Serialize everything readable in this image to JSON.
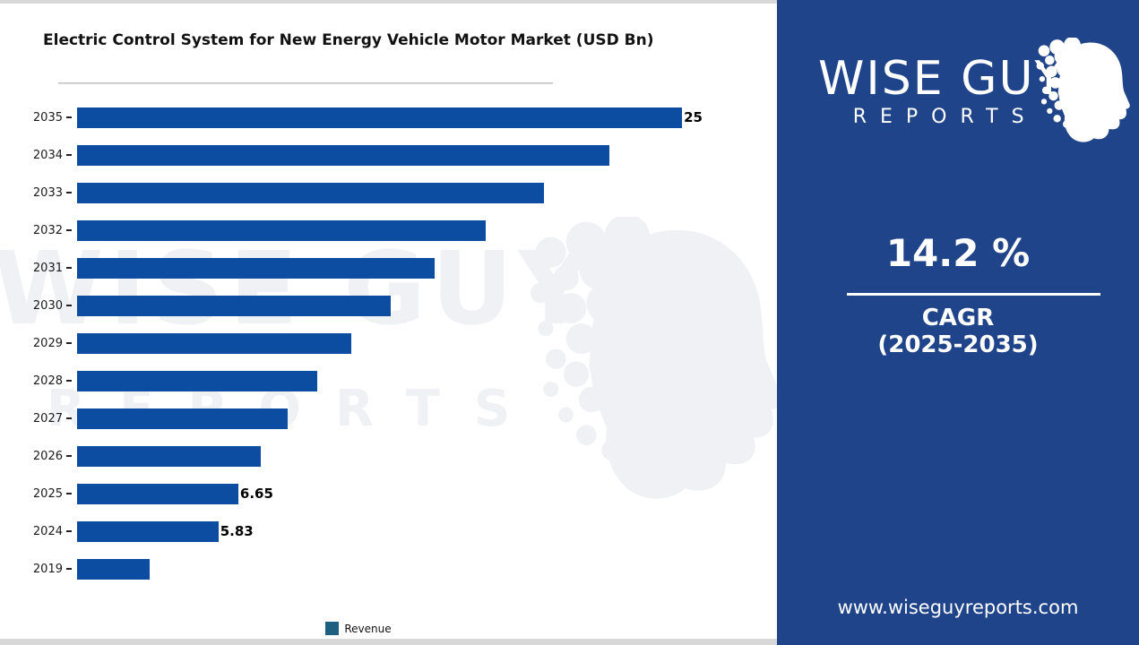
{
  "title": "Electric Control System for New Energy Vehicle Motor Market (USD Bn)",
  "chart_data": {
    "type": "bar",
    "orientation": "horizontal",
    "title": "Electric Control System for New Energy Vehicle Motor Market (USD Bn)",
    "xlabel": "",
    "ylabel": "",
    "xlim": [
      0,
      25.8
    ],
    "grid": false,
    "legend_position": "bottom-center",
    "series_name": "Revenue",
    "categories": [
      "2035",
      "2034",
      "2033",
      "2032",
      "2031",
      "2030",
      "2029",
      "2028",
      "2027",
      "2026",
      "2025",
      "2024",
      "2019"
    ],
    "values": [
      25,
      21.97,
      19.24,
      16.85,
      14.75,
      12.92,
      11.31,
      9.9,
      8.67,
      7.59,
      6.65,
      5.83,
      3.0
    ],
    "bar_labels": [
      "25",
      "",
      "",
      "",
      "",
      "",
      "",
      "",
      "",
      "",
      "6.65",
      "5.83",
      ""
    ],
    "bar_color": "#0c4da2"
  },
  "legend": {
    "label": "Revenue",
    "swatch_color": "#1f5f80"
  },
  "watermark": {
    "line1": "WISE GUY",
    "line2": "REPORTS"
  },
  "side_panel": {
    "background_color": "#204489",
    "logo_line1": "WISE GUY",
    "logo_line2": "REPORTS",
    "cagr_value": "14.2 %",
    "cagr_label": "CAGR",
    "cagr_range": "(2025-2035)",
    "website": "www.wiseguyreports.com"
  }
}
